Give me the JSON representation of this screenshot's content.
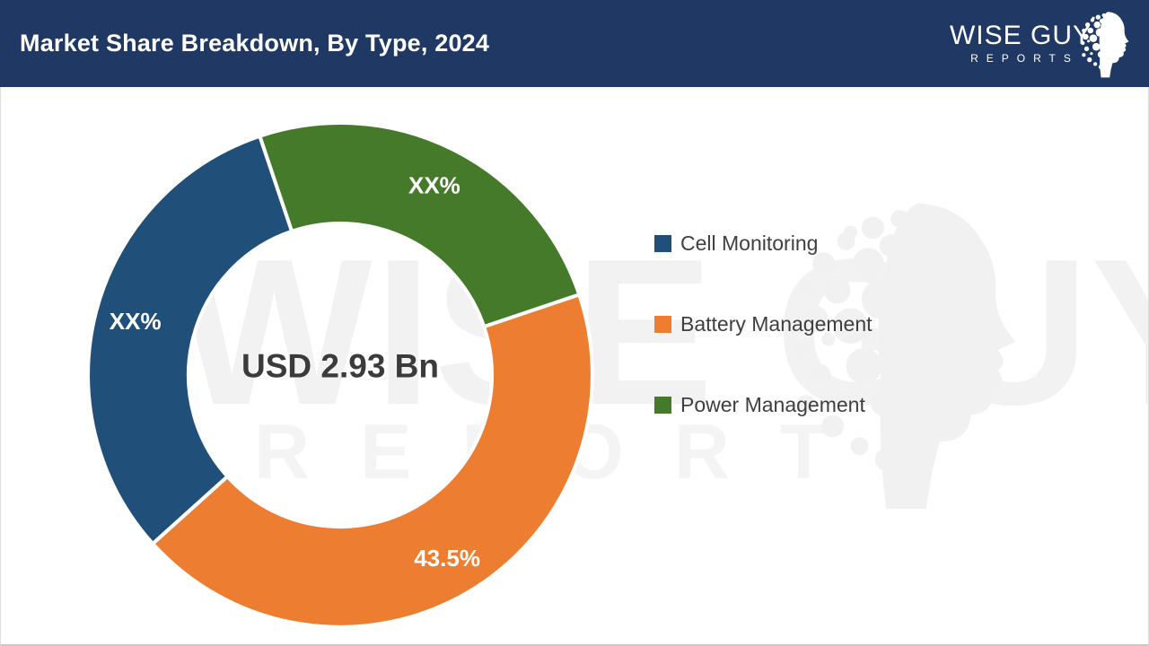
{
  "header": {
    "title": "Market Share Breakdown, By Type, 2024",
    "bg_color": "#203864",
    "logo": {
      "line1": "WISE GUY",
      "line2": "REPORTS"
    }
  },
  "chart_data": {
    "type": "pie",
    "variant": "donut",
    "title": "Market Share Breakdown, By Type, 2024",
    "center_label": "USD 2.93 Bn",
    "start_angle_deg": 228,
    "legend_position": "right",
    "slices": [
      {
        "name": "Cell Monitoring",
        "value": 31.5,
        "display_label": "XX%",
        "color": "#20507A"
      },
      {
        "name": "Power Management",
        "value": 25.0,
        "display_label": "XX%",
        "color": "#447A29"
      },
      {
        "name": "Battery Management",
        "value": 43.5,
        "display_label": "43.5%",
        "color": "#ED7D31"
      }
    ]
  },
  "legend": {
    "items": [
      {
        "label": "Cell Monitoring",
        "color": "#20507A"
      },
      {
        "label": "Battery Management",
        "color": "#ED7D31"
      },
      {
        "label": "Power Management",
        "color": "#447A29"
      }
    ]
  },
  "watermark": {
    "line1": "WISE GUY",
    "line2": "REPORTS"
  }
}
